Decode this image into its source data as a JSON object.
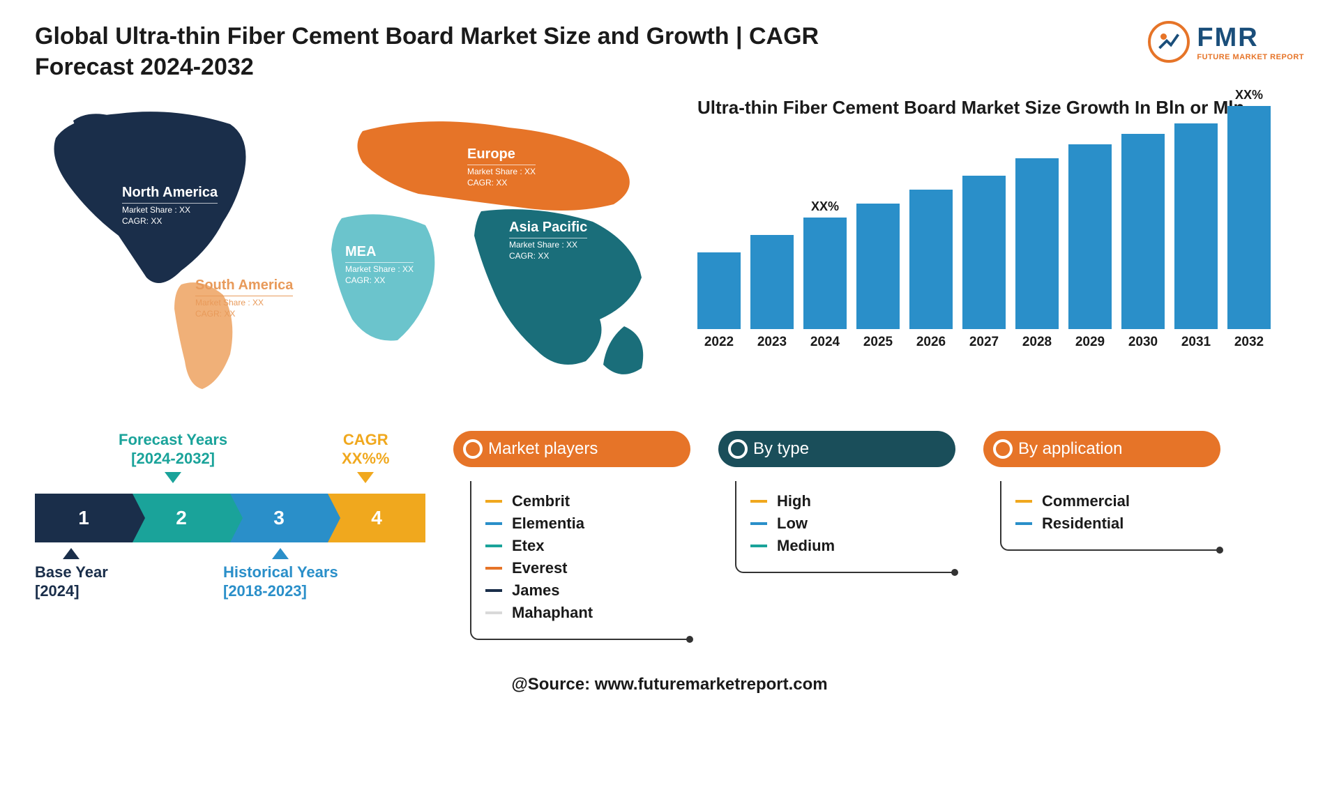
{
  "title": "Global Ultra-thin Fiber Cement Board Market Size and Growth | CAGR Forecast 2024-2032",
  "logo": {
    "main": "FMR",
    "sub": "FUTURE MARKET REPORT"
  },
  "colors": {
    "north_america": "#1a2e4a",
    "south_america": "#f0b078",
    "europe": "#e67428",
    "mea": "#6bc4cc",
    "asia_pacific": "#1a6e7a",
    "bar": "#2a8fc9",
    "tl1": "#1a2e4a",
    "tl2": "#1aa39a",
    "tl3": "#2a8fc9",
    "tl4": "#f0a81e",
    "pill_players": "#e67428",
    "pill_type": "#1a4e5a",
    "pill_app": "#e67428"
  },
  "regions": {
    "na": {
      "name": "North America",
      "share": "Market Share : XX",
      "cagr": "CAGR: XX"
    },
    "sa": {
      "name": "South America",
      "share": "Market Share : XX",
      "cagr": "CAGR: XX"
    },
    "eu": {
      "name": "Europe",
      "share": "Market Share : XX",
      "cagr": "CAGR: XX"
    },
    "mea": {
      "name": "MEA",
      "share": "Market Share : XX",
      "cagr": "CAGR: XX"
    },
    "ap": {
      "name": "Asia Pacific",
      "share": "Market Share : XX",
      "cagr": "CAGR: XX"
    }
  },
  "chart": {
    "title": "Ultra-thin Fiber Cement Board Market Size Growth In Bln or Mln",
    "years": [
      "2022",
      "2023",
      "2024",
      "2025",
      "2026",
      "2027",
      "2028",
      "2029",
      "2030",
      "2031",
      "2032"
    ],
    "heights": [
      110,
      135,
      160,
      180,
      200,
      220,
      245,
      265,
      280,
      295,
      320
    ],
    "annotations": {
      "2024": "XX%",
      "2032": "XX%"
    }
  },
  "timeline": {
    "forecast": {
      "label": "Forecast Years",
      "range": "[2024-2032]",
      "color": "#1aa39a"
    },
    "cagr": {
      "label": "CAGR",
      "value": "XX%%",
      "color": "#f0a81e"
    },
    "base": {
      "label": "Base Year",
      "range": "[2024]",
      "color": "#1a2e4a"
    },
    "hist": {
      "label": "Historical Years",
      "range": "[2018-2023]",
      "color": "#2a8fc9"
    },
    "segs": [
      "1",
      "2",
      "3",
      "4"
    ]
  },
  "pills": {
    "players": {
      "title": "Market players",
      "items": [
        {
          "tick": "#f0a81e",
          "label": "Cembrit"
        },
        {
          "tick": "#2a8fc9",
          "label": "Elementia"
        },
        {
          "tick": "#1aa39a",
          "label": "Etex"
        },
        {
          "tick": "#e67428",
          "label": "Everest"
        },
        {
          "tick": "#1a2e4a",
          "label": "James"
        },
        {
          "tick": "#d9d9d9",
          "label": "Mahaphant"
        }
      ]
    },
    "type": {
      "title": "By type",
      "items": [
        {
          "tick": "#f0a81e",
          "label": "High"
        },
        {
          "tick": "#2a8fc9",
          "label": "Low"
        },
        {
          "tick": "#1aa39a",
          "label": "Medium"
        }
      ]
    },
    "app": {
      "title": "By application",
      "items": [
        {
          "tick": "#f0a81e",
          "label": "Commercial"
        },
        {
          "tick": "#2a8fc9",
          "label": "Residential"
        }
      ]
    }
  },
  "footer": "@Source: www.futuremarketreport.com"
}
